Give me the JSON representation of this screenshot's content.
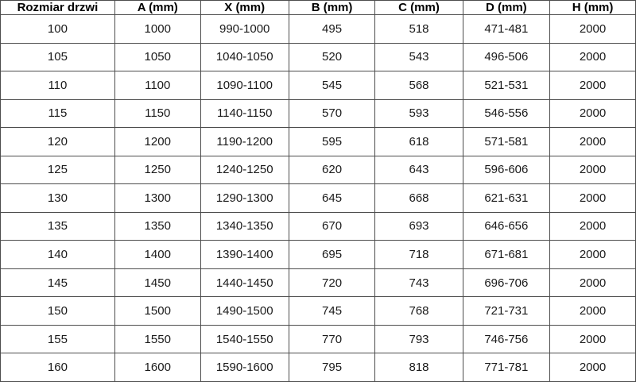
{
  "table": {
    "name": "door-size-table",
    "columns": [
      "Rozmiar drzwi",
      "A (mm)",
      "X (mm)",
      "B (mm)",
      "C (mm)",
      "D (mm)",
      "H (mm)"
    ],
    "rows": [
      [
        "100",
        "1000",
        "990-1000",
        "495",
        "518",
        "471-481",
        "2000"
      ],
      [
        "105",
        "1050",
        "1040-1050",
        "520",
        "543",
        "496-506",
        "2000"
      ],
      [
        "110",
        "1100",
        "1090-1100",
        "545",
        "568",
        "521-531",
        "2000"
      ],
      [
        "115",
        "1150",
        "1140-1150",
        "570",
        "593",
        "546-556",
        "2000"
      ],
      [
        "120",
        "1200",
        "1190-1200",
        "595",
        "618",
        "571-581",
        "2000"
      ],
      [
        "125",
        "1250",
        "1240-1250",
        "620",
        "643",
        "596-606",
        "2000"
      ],
      [
        "130",
        "1300",
        "1290-1300",
        "645",
        "668",
        "621-631",
        "2000"
      ],
      [
        "135",
        "1350",
        "1340-1350",
        "670",
        "693",
        "646-656",
        "2000"
      ],
      [
        "140",
        "1400",
        "1390-1400",
        "695",
        "718",
        "671-681",
        "2000"
      ],
      [
        "145",
        "1450",
        "1440-1450",
        "720",
        "743",
        "696-706",
        "2000"
      ],
      [
        "150",
        "1500",
        "1490-1500",
        "745",
        "768",
        "721-731",
        "2000"
      ],
      [
        "155",
        "1550",
        "1540-1550",
        "770",
        "793",
        "746-756",
        "2000"
      ],
      [
        "160",
        "1600",
        "1590-1600",
        "795",
        "818",
        "771-781",
        "2000"
      ]
    ],
    "colors": {
      "border": "#4d4d4d",
      "text": "#1a1a1a",
      "background": "#ffffff"
    }
  }
}
